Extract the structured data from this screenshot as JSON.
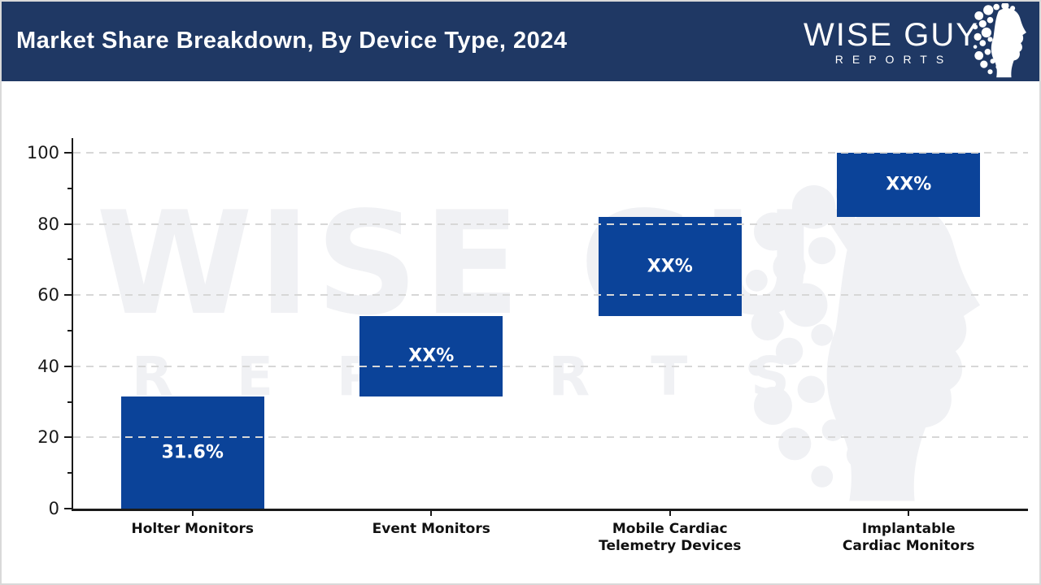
{
  "header": {
    "title": "Market Share Breakdown, By Device Type, 2024",
    "logo": {
      "line1": "WISE GUY",
      "line2": "REPORTS"
    }
  },
  "watermark": {
    "line1": "WISE GUY",
    "line2": "REPORTS"
  },
  "theme": {
    "header_bg": "#1f3864",
    "bar_color": "#0b4399",
    "watermark_color": "#f0f1f4",
    "grid_color": "#d7d7d7",
    "axis_color": "#1a1a1a"
  },
  "chart_data": {
    "type": "bar",
    "subtype": "waterfall",
    "title": "Market Share Breakdown, By Device Type, 2024",
    "categories": [
      "Holter Monitors",
      "Event Monitors",
      "Mobile Cardiac\nTelemetry Devices",
      "Implantable\nCardiac Monitors"
    ],
    "segments": [
      {
        "start": 0,
        "end": 31.6,
        "label": "31.6%"
      },
      {
        "start": 31.6,
        "end": 54.2,
        "label": "XX%"
      },
      {
        "start": 54.2,
        "end": 82.0,
        "label": "XX%"
      },
      {
        "start": 82.0,
        "end": 100.0,
        "label": "XX%"
      }
    ],
    "values": [
      31.6,
      22.6,
      27.8,
      18.0
    ],
    "bar_labels": [
      "31.6%",
      "XX%",
      "XX%",
      "XX%"
    ],
    "xlabel": "",
    "ylabel": "",
    "ylim": [
      0,
      100
    ],
    "yticks": [
      0,
      20,
      40,
      60,
      80,
      100
    ],
    "grid": "dashed horizontal, drawn over bars",
    "legend": "none",
    "bar_width_fraction": 0.6
  }
}
